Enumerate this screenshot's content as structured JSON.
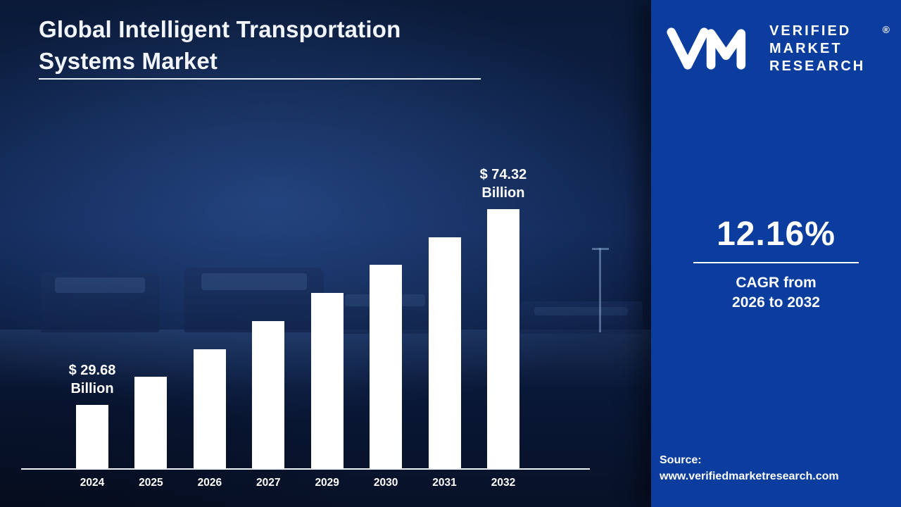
{
  "title": "Global Intelligent Transportation Systems Market",
  "chart_data": {
    "type": "bar",
    "title": "Global Intelligent Transportation Systems Market",
    "categories": [
      "2024",
      "2025",
      "2026",
      "2027",
      "2029",
      "2030",
      "2031",
      "2032"
    ],
    "values": [
      29.68,
      33.29,
      37.34,
      41.88,
      52.68,
      59.09,
      66.27,
      74.32
    ],
    "unit": "USD Billion",
    "xlabel": "",
    "ylabel": "",
    "ylim": [
      0,
      80
    ],
    "grid": false,
    "legend": false,
    "bar_color": "#ffffff",
    "axis_color": "#ffffff",
    "value_labels": {
      "first": {
        "category": "2024",
        "value": 29.68,
        "lines": [
          "$ 29.68",
          "Billion"
        ]
      },
      "last": {
        "category": "2032",
        "value": 74.32,
        "lines": [
          "$ 74.32",
          "Billion"
        ]
      }
    }
  },
  "sidebar": {
    "logo": {
      "monogram": "VM",
      "brand_lines": [
        "VERIFIED",
        "MARKET",
        "RESEARCH"
      ],
      "registered_mark": "®"
    },
    "cagr_value": "12.16%",
    "cagr_caption_line1": "CAGR from",
    "cagr_caption_line2": "2026 to 2032",
    "source_label": "Source:",
    "source_url": "www.verifiedmarketresearch.com"
  },
  "colors": {
    "panel_blue": "#0a3d9e",
    "bar_white": "#ffffff",
    "background_navy": "#0b1c40",
    "text_white": "#ffffff"
  }
}
